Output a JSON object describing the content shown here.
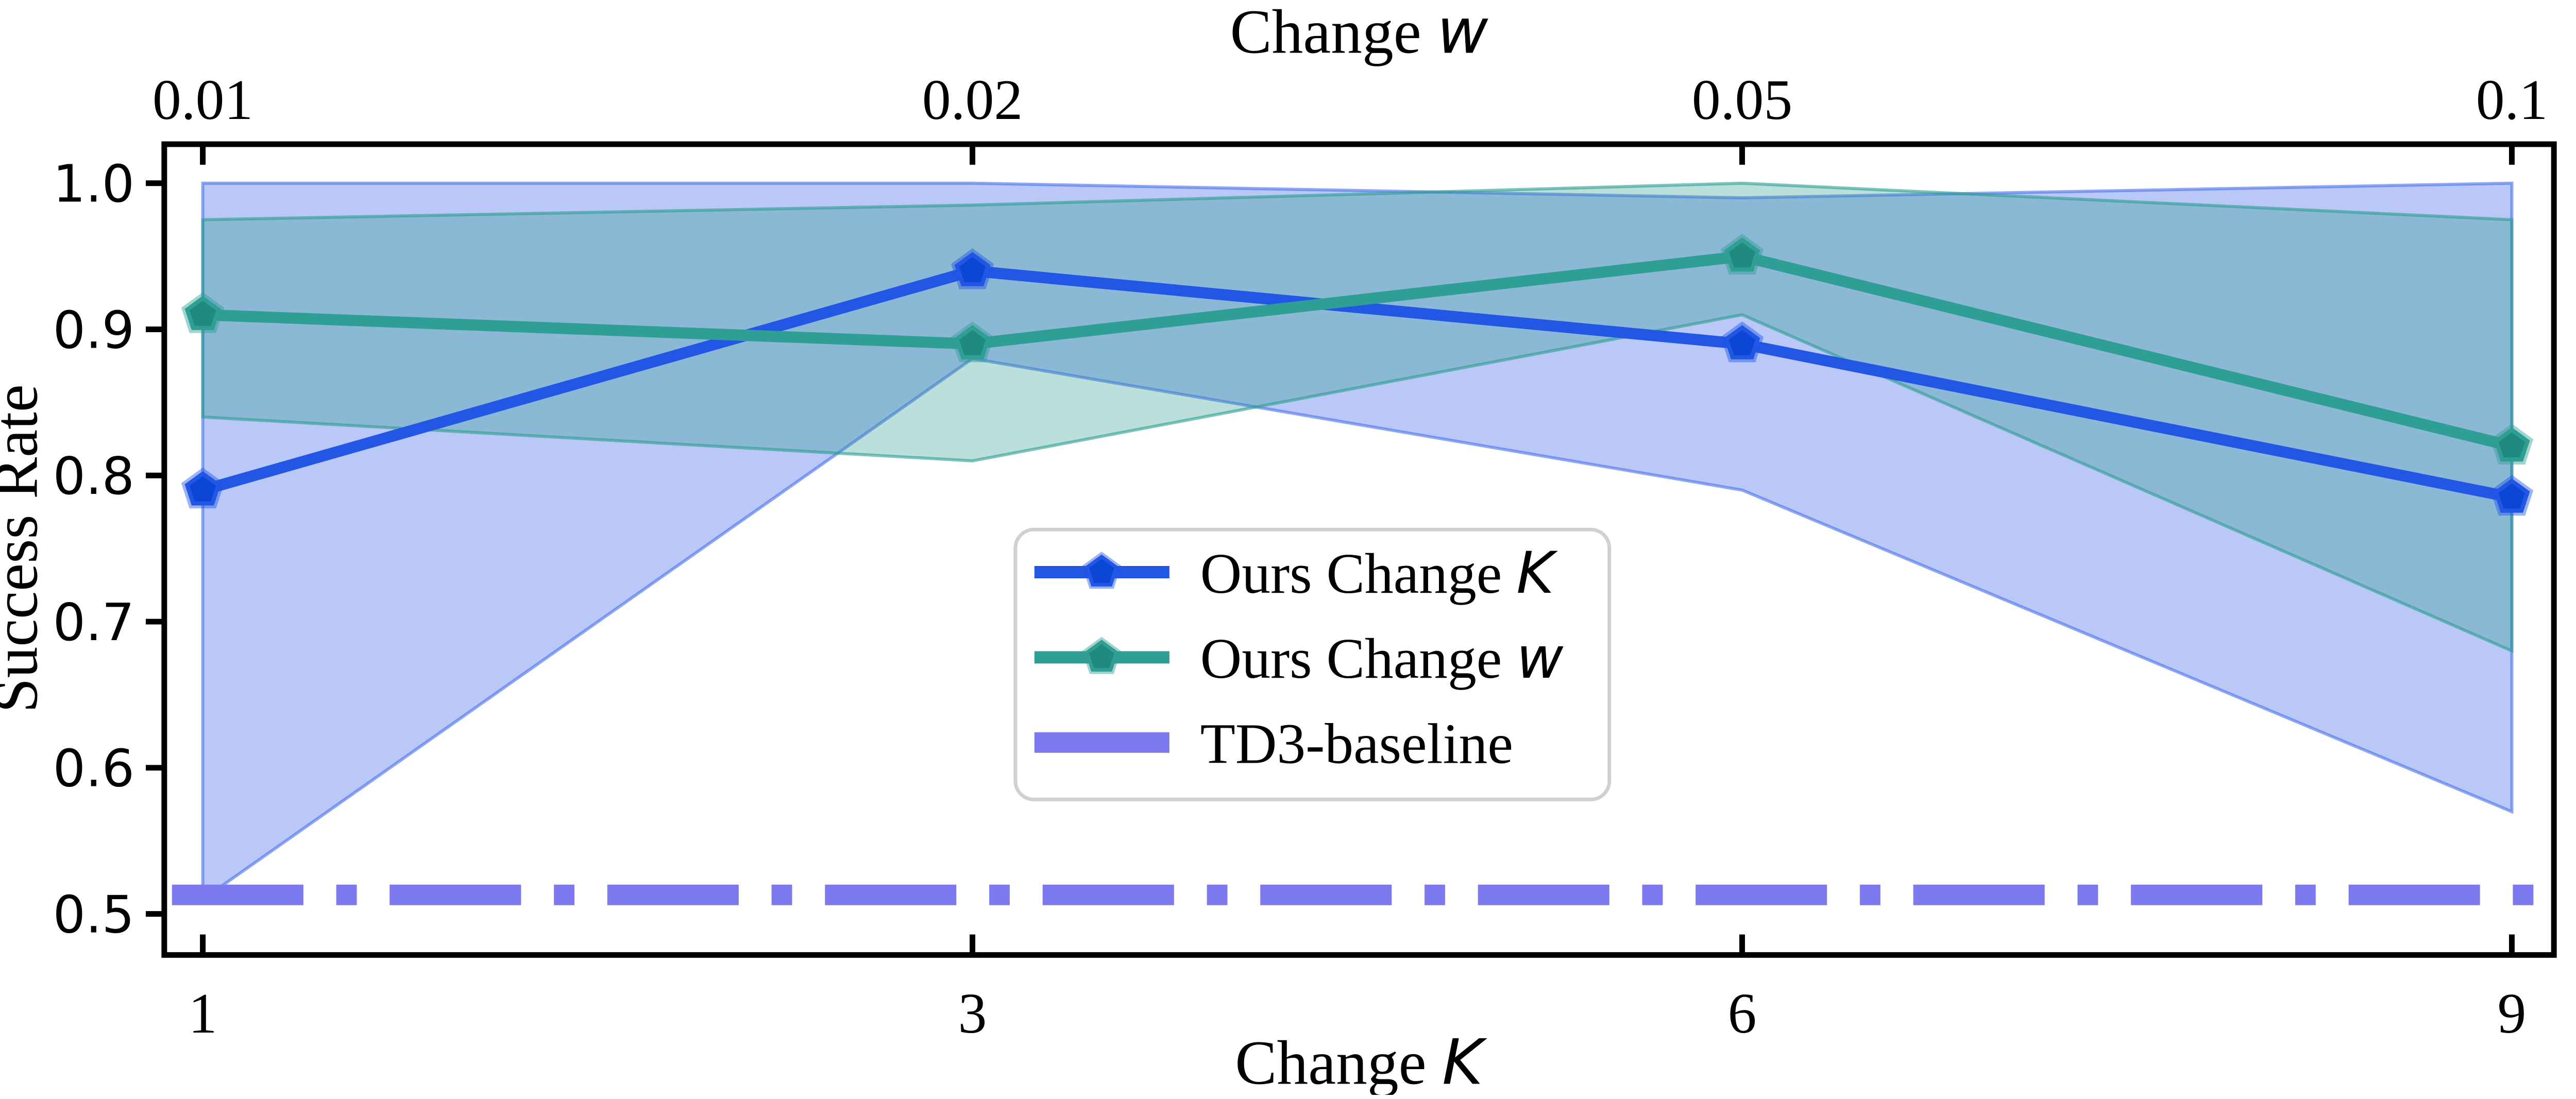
{
  "chart_data": {
    "type": "line",
    "title_top": {
      "prefix": "Change ",
      "math": "w"
    },
    "title_bottom": {
      "prefix": "Change ",
      "math": "K"
    },
    "ylabel": "Success Rate",
    "top_tick_labels": [
      "0.01",
      "0.02",
      "0.05",
      "0.1"
    ],
    "bottom_tick_labels": [
      "1",
      "3",
      "6",
      "9"
    ],
    "y_tick_labels": [
      "1.0",
      "0.9",
      "0.8",
      "0.7",
      "0.6",
      "0.5"
    ],
    "y_tick_values": [
      1.0,
      0.9,
      0.8,
      0.7,
      0.6,
      0.5
    ],
    "x_values_change_K": [
      1,
      3,
      6,
      9
    ],
    "x_values_change_w": [
      0.01,
      0.02,
      0.05,
      0.1
    ],
    "ylim": [
      0.472,
      1.026
    ],
    "grid": false,
    "legend_location": "center",
    "series": [
      {
        "label": {
          "prefix": "Ours Change ",
          "math": "K"
        },
        "marker": "pentagon",
        "color": "#2257e5",
        "marker_fill": "#0c46d6",
        "band_fill": "rgba(70,110,235,0.38)",
        "band_edge": "rgba(70,110,235,0.60)",
        "values": [
          0.79,
          0.94,
          0.89,
          0.785
        ],
        "band_lower": [
          0.51,
          0.88,
          0.79,
          0.57
        ],
        "band_upper": [
          1.0,
          1.0,
          0.99,
          1.0
        ]
      },
      {
        "label": {
          "prefix": "Ours Change ",
          "math": "w"
        },
        "marker": "pentagon",
        "color": "#2f9e94",
        "marker_fill": "#1e8a80",
        "band_fill": "rgba(42,157,143,0.32)",
        "band_edge": "rgba(42,157,143,0.60)",
        "values": [
          0.91,
          0.89,
          0.95,
          0.82
        ],
        "band_lower": [
          0.84,
          0.81,
          0.91,
          0.68
        ],
        "band_upper": [
          0.975,
          0.985,
          1.0,
          0.975
        ]
      },
      {
        "label": {
          "prefix": "TD3-baseline",
          "math": ""
        },
        "style": "dashdot",
        "color": "#7d79ee",
        "value": 0.513
      }
    ]
  }
}
